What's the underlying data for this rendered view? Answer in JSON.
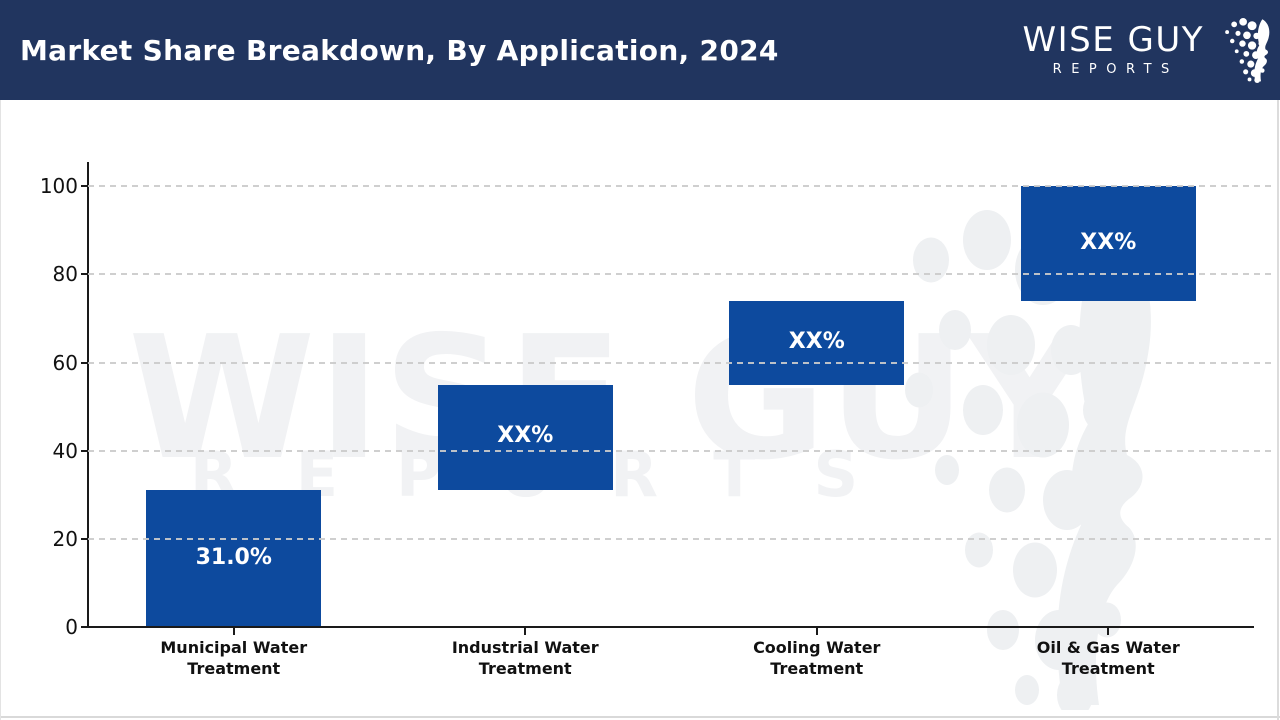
{
  "header": {
    "title": "Market Share Breakdown, By Application, 2024",
    "logo": {
      "line1": "WISE GUY",
      "line2": "REPORTS"
    }
  },
  "watermark": {
    "line1": "WISE GUY",
    "line2": "REPORTS"
  },
  "chart_data": {
    "type": "bar",
    "subtype": "waterfall-floating-segments",
    "title": "Market Share Breakdown, By Application, 2024",
    "categories": [
      "Municipal Water Treatment",
      "Industrial Water Treatment",
      "Cooling Water Treatment",
      "Oil & Gas Water Treatment"
    ],
    "bars": [
      {
        "category": "Municipal Water Treatment",
        "start": 0,
        "end": 31,
        "label": "31.0%"
      },
      {
        "category": "Industrial Water Treatment",
        "start": 31,
        "end": 55,
        "label": "XX%"
      },
      {
        "category": "Cooling Water Treatment",
        "start": 55,
        "end": 74,
        "label": "XX%"
      },
      {
        "category": "Oil & Gas Water Treatment",
        "start": 74,
        "end": 100,
        "label": "XX%"
      }
    ],
    "yticks": [
      0,
      20,
      40,
      60,
      80,
      100
    ],
    "ylim": [
      0,
      105.5
    ],
    "xlabel": "",
    "ylabel": "",
    "grid": "horizontal-dashed",
    "legend": "none",
    "bar_color": "#0d4a9e",
    "header_color": "#21355f"
  }
}
